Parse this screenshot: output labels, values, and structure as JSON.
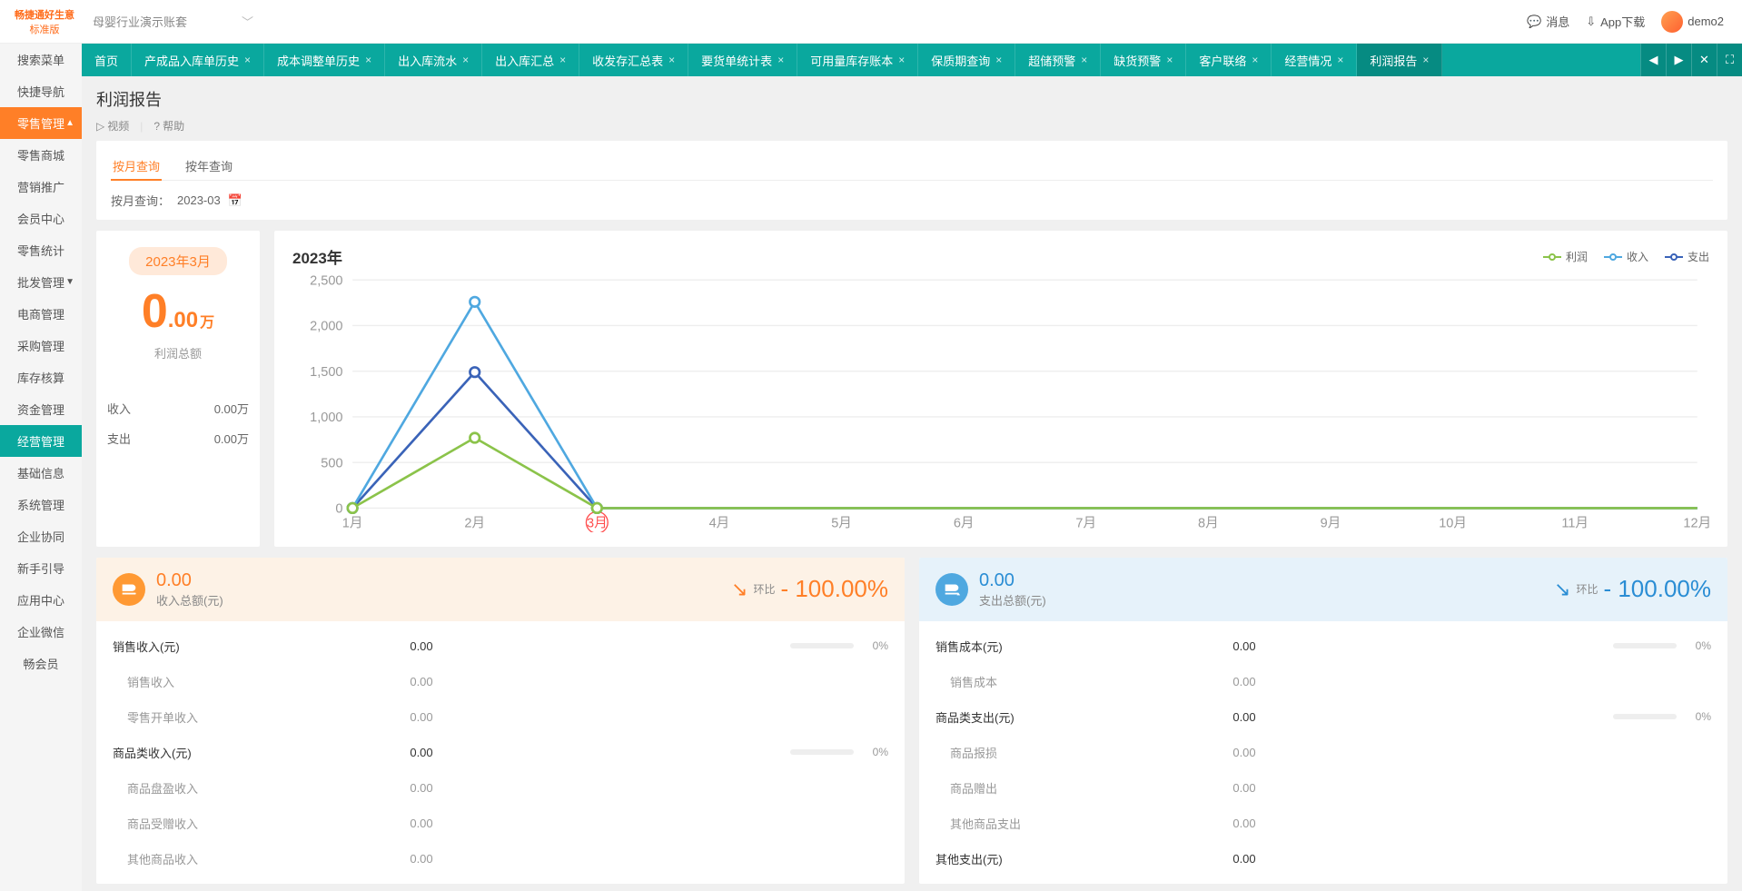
{
  "header": {
    "logo_top": "畅捷通好生意",
    "logo_sub": "标准版",
    "account_name": "母婴行业演示账套",
    "messages": "消息",
    "app_download": "App下载",
    "user": "demo2"
  },
  "sidebar": {
    "items": [
      {
        "label": "搜索菜单"
      },
      {
        "label": "快捷导航"
      },
      {
        "label": "零售管理",
        "activeOrange": true,
        "arrow": "▲"
      },
      {
        "label": "零售商城"
      },
      {
        "label": "营销推广"
      },
      {
        "label": "会员中心"
      },
      {
        "label": "零售统计"
      },
      {
        "label": "批发管理",
        "arrow": "▼"
      },
      {
        "label": "电商管理"
      },
      {
        "label": "采购管理"
      },
      {
        "label": "库存核算"
      },
      {
        "label": "资金管理"
      },
      {
        "label": "经营管理",
        "activeTeal": true
      },
      {
        "label": "基础信息"
      },
      {
        "label": "系统管理"
      },
      {
        "label": "企业协同"
      },
      {
        "label": "新手引导"
      },
      {
        "label": "应用中心"
      },
      {
        "label": "企业微信"
      },
      {
        "label": "畅会员"
      }
    ]
  },
  "tabs": {
    "items": [
      {
        "label": "首页",
        "closable": false
      },
      {
        "label": "产成品入库单历史",
        "closable": true
      },
      {
        "label": "成本调整单历史",
        "closable": true
      },
      {
        "label": "出入库流水",
        "closable": true
      },
      {
        "label": "出入库汇总",
        "closable": true
      },
      {
        "label": "收发存汇总表",
        "closable": true
      },
      {
        "label": "要货单统计表",
        "closable": true
      },
      {
        "label": "可用量库存账本",
        "closable": true
      },
      {
        "label": "保质期查询",
        "closable": true
      },
      {
        "label": "超储预警",
        "closable": true
      },
      {
        "label": "缺货预警",
        "closable": true
      },
      {
        "label": "客户联络",
        "closable": true
      },
      {
        "label": "经营情况",
        "closable": true
      },
      {
        "label": "利润报告",
        "closable": true,
        "active": true
      }
    ]
  },
  "page": {
    "title": "利润报告",
    "video": "视频",
    "help": "帮助",
    "subTabs": {
      "monthly": "按月查询",
      "yearly": "按年查询"
    },
    "filterLabel": "按月查询：",
    "filterValue": "2023-03"
  },
  "summary": {
    "monthBadge": "2023年3月",
    "bigInt": "0",
    "bigDec": ".00",
    "bigUnit": "万",
    "bigLabel": "利润总额",
    "income_label": "收入",
    "income_value": "0.00万",
    "expense_label": "支出",
    "expense_value": "0.00万"
  },
  "chart": {
    "title": "2023年",
    "legend": {
      "profit": "利润",
      "income": "收入",
      "expense": "支出"
    },
    "color_profit": "#8bc34a",
    "color_income": "#4fa8e0",
    "color_expense": "#3a63b8",
    "grid_color": "#eeeeee",
    "axis_color": "#cccccc",
    "label_color": "#999999",
    "highlight_label_color": "#ff4d4d",
    "yticks": [
      "0",
      "500",
      "1,000",
      "1,500",
      "2,000",
      "2,500"
    ],
    "ymax": 2500,
    "months": [
      "1月",
      "2月",
      "3月",
      "4月",
      "5月",
      "6月",
      "7月",
      "8月",
      "9月",
      "10月",
      "11月",
      "12月"
    ],
    "highlight_month_index": 2,
    "series": {
      "profit": [
        0,
        770,
        0,
        0,
        0,
        0,
        0,
        0,
        0,
        0,
        0,
        0
      ],
      "income": [
        0,
        2260,
        0,
        0,
        0,
        0,
        0,
        0,
        0,
        0,
        0,
        0
      ],
      "expense": [
        0,
        1490,
        0,
        0,
        0,
        0,
        0,
        0,
        0,
        0,
        0,
        0
      ]
    }
  },
  "incomeCard": {
    "amount": "0.00",
    "subtitle": "收入总额(元)",
    "ratio_label": "环比",
    "ratio_value": "- 100.00%",
    "rows": [
      {
        "name": "销售收入(元)",
        "val": "0.00",
        "pct": "0%",
        "major": true
      },
      {
        "name": "销售收入",
        "val": "0.00",
        "major": false
      },
      {
        "name": "零售开单收入",
        "val": "0.00",
        "major": false
      },
      {
        "name": "商品类收入(元)",
        "val": "0.00",
        "pct": "0%",
        "major": true
      },
      {
        "name": "商品盘盈收入",
        "val": "0.00",
        "major": false
      },
      {
        "name": "商品受赠收入",
        "val": "0.00",
        "major": false
      },
      {
        "name": "其他商品收入",
        "val": "0.00",
        "major": false
      }
    ]
  },
  "expenseCard": {
    "amount": "0.00",
    "subtitle": "支出总额(元)",
    "ratio_label": "环比",
    "ratio_value": "- 100.00%",
    "rows": [
      {
        "name": "销售成本(元)",
        "val": "0.00",
        "pct": "0%",
        "major": true
      },
      {
        "name": "销售成本",
        "val": "0.00",
        "major": false
      },
      {
        "name": "商品类支出(元)",
        "val": "0.00",
        "pct": "0%",
        "major": true
      },
      {
        "name": "商品报损",
        "val": "0.00",
        "major": false
      },
      {
        "name": "商品赠出",
        "val": "0.00",
        "major": false
      },
      {
        "name": "其他商品支出",
        "val": "0.00",
        "major": false
      },
      {
        "name": "其他支出(元)",
        "val": "0.00",
        "major": true
      }
    ]
  }
}
